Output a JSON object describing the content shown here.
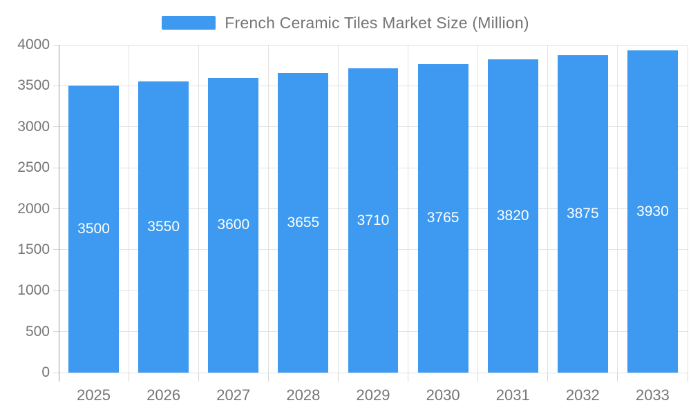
{
  "legend": {
    "series_label": "French Ceramic Tiles Market Size (Million)"
  },
  "chart_data": {
    "type": "bar",
    "title": "French Ceramic Tiles Market Size (Million)",
    "categories": [
      "2025",
      "2026",
      "2027",
      "2028",
      "2029",
      "2030",
      "2031",
      "2032",
      "2033"
    ],
    "series": [
      {
        "name": "French Ceramic Tiles Market Size (Million)",
        "values": [
          3500,
          3550,
          3600,
          3655,
          3710,
          3765,
          3820,
          3875,
          3930
        ]
      }
    ],
    "values": [
      3500,
      3550,
      3600,
      3655,
      3710,
      3765,
      3820,
      3875,
      3930
    ],
    "value_labels": [
      "3500",
      "3550",
      "3600",
      "3655",
      "3710",
      "3765",
      "3820",
      "3875",
      "3930"
    ],
    "xlabel": "",
    "ylabel": "",
    "ylim": [
      0,
      4000
    ],
    "ytick_step": 500,
    "yticks": [
      0,
      500,
      1000,
      1500,
      2000,
      2500,
      3000,
      3500,
      4000
    ],
    "grid": true,
    "legend_position": "top-center",
    "colors": {
      "bar": "#3D9AF0",
      "value_text": "#FFFFFF",
      "axis_text": "#757575",
      "grid_line": "#E2E2E2",
      "axis_line": "#9A9A9A",
      "tick_line": "#D5D5D5",
      "background": "#FFFFFF"
    }
  }
}
